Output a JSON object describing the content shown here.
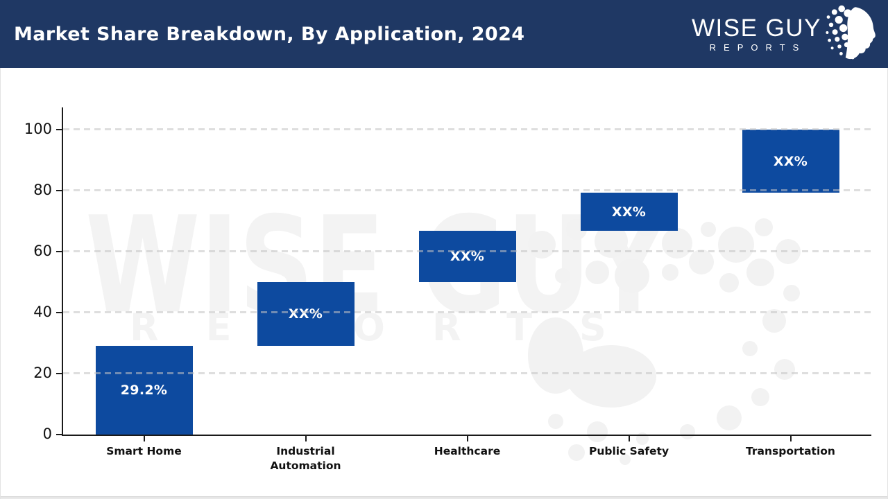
{
  "header": {
    "title": "Market Share Breakdown, By Application, 2024",
    "bg_color": "#1f3864",
    "logo": {
      "line1": "WISE GUY",
      "line2": "REPORTS"
    }
  },
  "watermark": {
    "line1": "WISE GUY",
    "line2": "REPORTS"
  },
  "chart_data": {
    "type": "bar",
    "subtype": "floating-waterfall",
    "title": "Market Share Breakdown, By Application, 2024",
    "categories": [
      "Smart Home",
      "Industrial Automation",
      "Healthcare",
      "Public Safety",
      "Transportation"
    ],
    "segments": [
      {
        "category": "Smart Home",
        "start": 0,
        "end": 29.2,
        "label": "29.2%"
      },
      {
        "category": "Industrial Automation",
        "start": 29.2,
        "end": 50.0,
        "label": "XX%"
      },
      {
        "category": "Healthcare",
        "start": 50.0,
        "end": 66.8,
        "label": "XX%"
      },
      {
        "category": "Public Safety",
        "start": 66.8,
        "end": 79.3,
        "label": "XX%"
      },
      {
        "category": "Transportation",
        "start": 79.3,
        "end": 100.0,
        "label": "XX%"
      }
    ],
    "ylim": [
      0,
      100
    ],
    "yticks": [
      0,
      20,
      40,
      60,
      80,
      100
    ],
    "grid": "horizontal-dashed",
    "legend": "none",
    "bar_color": "#0d4a9f",
    "bar_label_color": "#ffffff",
    "axis_color": "#1a1a1a",
    "gridline_color": "#d9d9d9"
  }
}
